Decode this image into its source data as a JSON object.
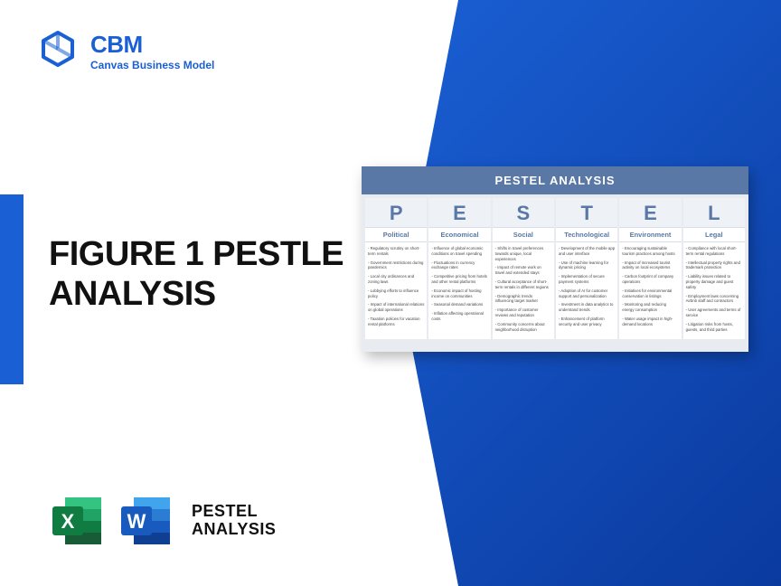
{
  "brand": {
    "abbrev": "CBM",
    "subtitle": "Canvas Business Model",
    "accent_color": "#1a5fd4"
  },
  "main_title_line1": "FIGURE 1 PESTLE",
  "main_title_line2": "ANALYSIS",
  "bottom_label_line1": "PESTEL",
  "bottom_label_line2": "ANALYSIS",
  "preview": {
    "title": "PESTEL ANALYSIS",
    "header_bg": "#5a78a6",
    "card_bg": "#e8ebef",
    "columns": [
      {
        "letter": "P",
        "label": "Political",
        "items": [
          "- Regulatory scrutiny on short-term rentals",
          "- Government restrictions during pandemics",
          "- Local city ordinances and zoning laws",
          "- Lobbying efforts to influence policy",
          "- Impact of international relations on global operations",
          "- Taxation policies for vacation rental platforms"
        ]
      },
      {
        "letter": "E",
        "label": "Economical",
        "items": [
          "- Influence of global economic conditions on travel spending",
          "- Fluctuations in currency exchange rates",
          "- Competitive pricing from hotels and other rental platforms",
          "- Economic impact of hosting income on communities",
          "- Seasonal demand variations",
          "- Inflation affecting operational costs"
        ]
      },
      {
        "letter": "S",
        "label": "Social",
        "items": [
          "- Shifts in travel preferences towards unique, local experiences",
          "- Impact of remote work on travel and extended stays",
          "- Cultural acceptance of short-term rentals in different regions",
          "- Demographic trends influencing target market",
          "- Importance of customer reviews and reputation",
          "- Community concerns about neighborhood disruption"
        ]
      },
      {
        "letter": "T",
        "label": "Technological",
        "items": [
          "- Development of the mobile app and user interface",
          "- Use of machine learning for dynamic pricing",
          "- Implementation of secure payment systems",
          "- Adoption of AI for customer support and personalization",
          "- Investment in data analytics to understand trends",
          "- Enhancement of platform security and user privacy"
        ]
      },
      {
        "letter": "E",
        "label": "Environment",
        "items": [
          "- Encouraging sustainable tourism practices among hosts",
          "- Impact of increased tourist activity on local ecosystems",
          "- Carbon footprint of company operations",
          "- Initiatives for environmental conservation in listings",
          "- Monitoring and reducing energy consumption",
          "- Water usage impact in high-demand locations"
        ]
      },
      {
        "letter": "L",
        "label": "Legal",
        "items": [
          "- Compliance with local short-term rental regulations",
          "- Intellectual property rights and trademark protection",
          "- Liability issues related to property damage and guest safety",
          "- Employment laws concerning Airbnb staff and contractors",
          "- User agreements and terms of service",
          "- Litigation risks from hosts, guests, and third parties"
        ]
      }
    ]
  },
  "icons": {
    "excel": {
      "bg": "#107c41",
      "light": "#21a366",
      "letter": "X"
    },
    "word": {
      "bg": "#185abd",
      "light": "#41a5ee",
      "letter": "W"
    }
  }
}
